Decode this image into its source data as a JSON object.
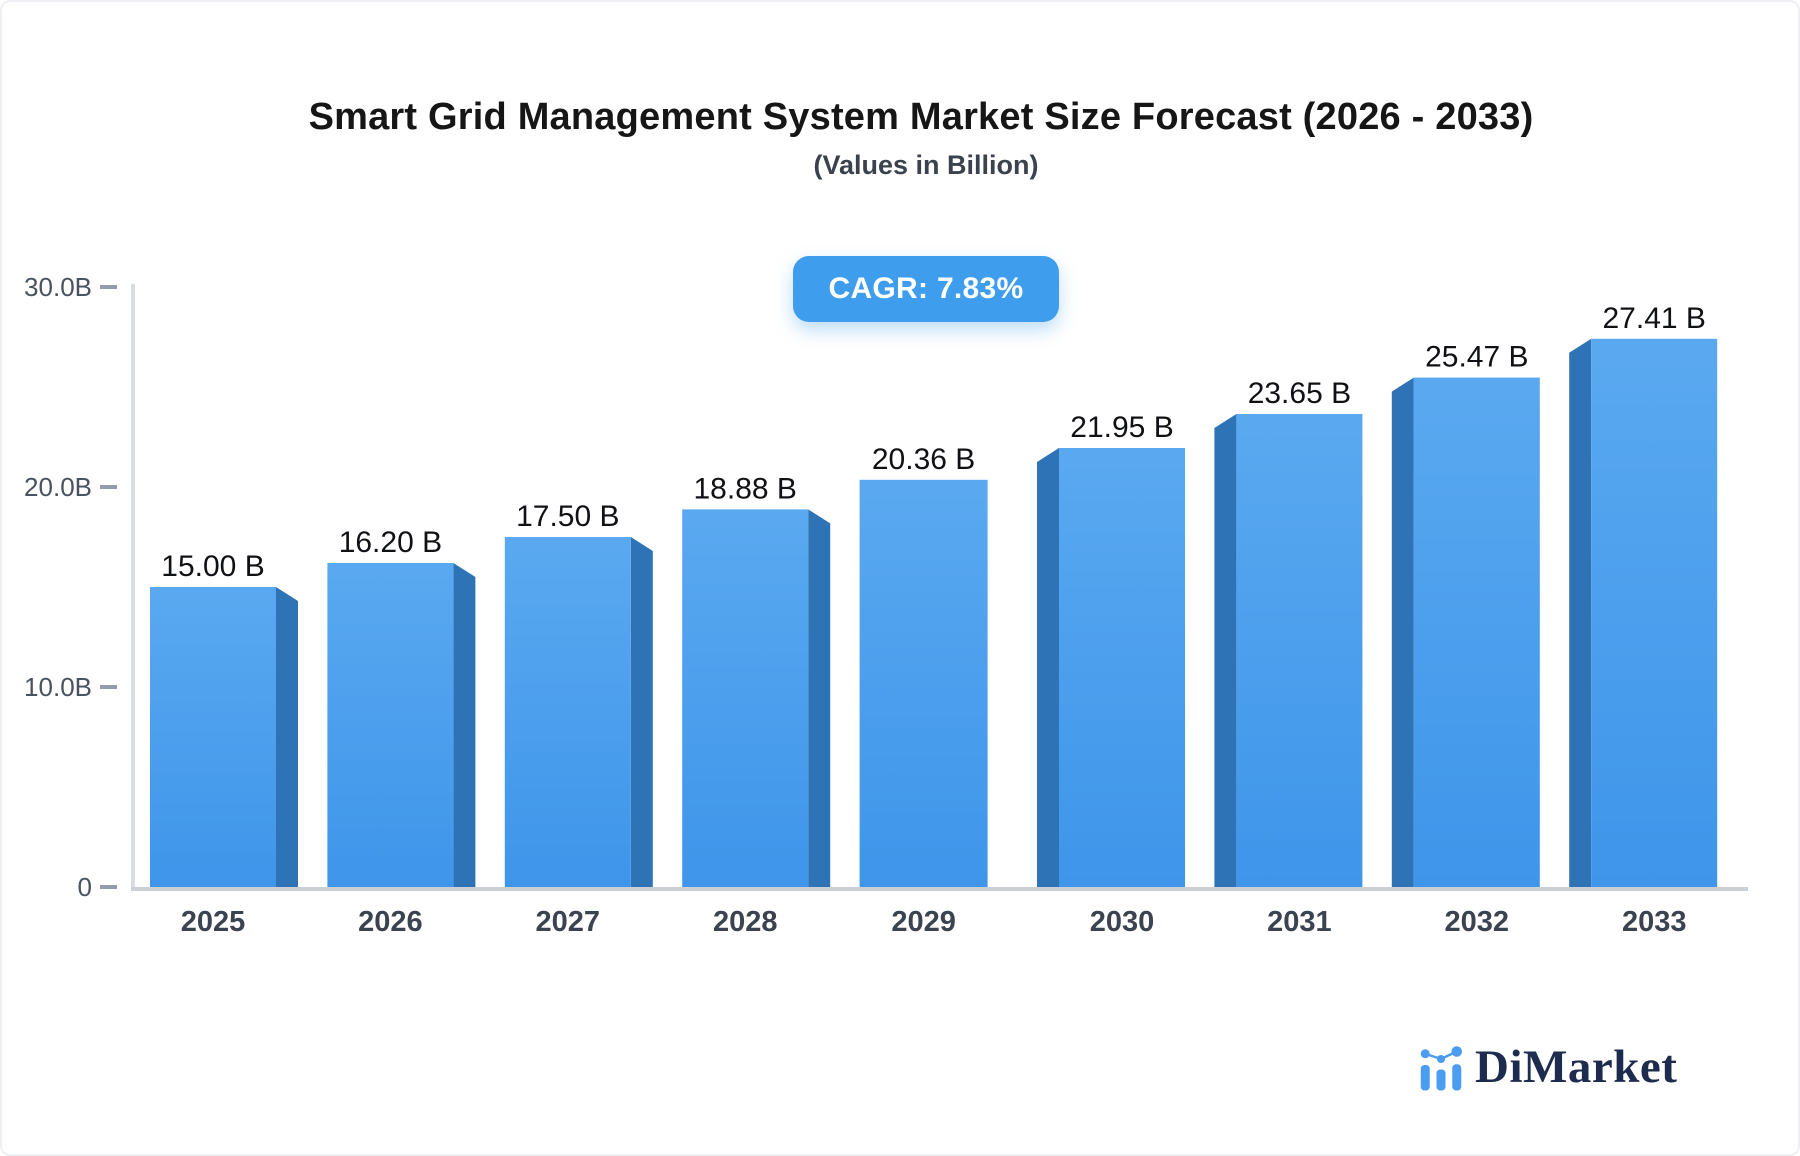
{
  "header": {
    "title": "Smart Grid Management System Market Size Forecast (2026 - 2033)",
    "subtitle": "(Values in Billion)"
  },
  "badge": {
    "label": "CAGR: 7.83%",
    "bg": "#3f9ded",
    "text_color": "#ffffff"
  },
  "chart_data": {
    "type": "bar",
    "title": "Smart Grid Management System Market Size Forecast (2026 - 2033)",
    "subtitle": "(Values in Billion)",
    "cagr": "CAGR: 7.83%",
    "categories": [
      "2025",
      "2026",
      "2027",
      "2028",
      "2029",
      "2030",
      "2031",
      "2032",
      "2033"
    ],
    "values": [
      15.0,
      16.2,
      17.5,
      18.88,
      20.36,
      21.95,
      23.65,
      25.47,
      27.41
    ],
    "value_labels": [
      "15.00 B",
      "16.20 B",
      "17.50 B",
      "18.88 B",
      "20.36 B",
      "21.95 B",
      "23.65 B",
      "25.47 B",
      "27.41 B"
    ],
    "xlabel": "",
    "ylabel": "",
    "ylim": [
      0,
      30
    ],
    "yticks": [
      {
        "label": "30.0B",
        "value": 30
      },
      {
        "label": "20.0B",
        "value": 20
      },
      {
        "label": "10.0B",
        "value": 10
      },
      {
        "label": "0",
        "value": 0
      }
    ],
    "grid": false,
    "legend": "none",
    "colors": {
      "bar_top": "#5aa9f0",
      "bar_bottom": "#3e95ea",
      "bar_side": "#2d73b5",
      "axis_line": "#d9dce1",
      "baseline": "#cbd0d7",
      "tick_mark": "#939cab",
      "tick_text": "#49525f",
      "value_text": "#101114",
      "year_text": "#3b4350"
    }
  },
  "logo": {
    "text": "DiMarket",
    "icon": "mini-bar-chart-icon",
    "icon_color": "#4a9df0",
    "text_color": "#1d2b4e"
  }
}
